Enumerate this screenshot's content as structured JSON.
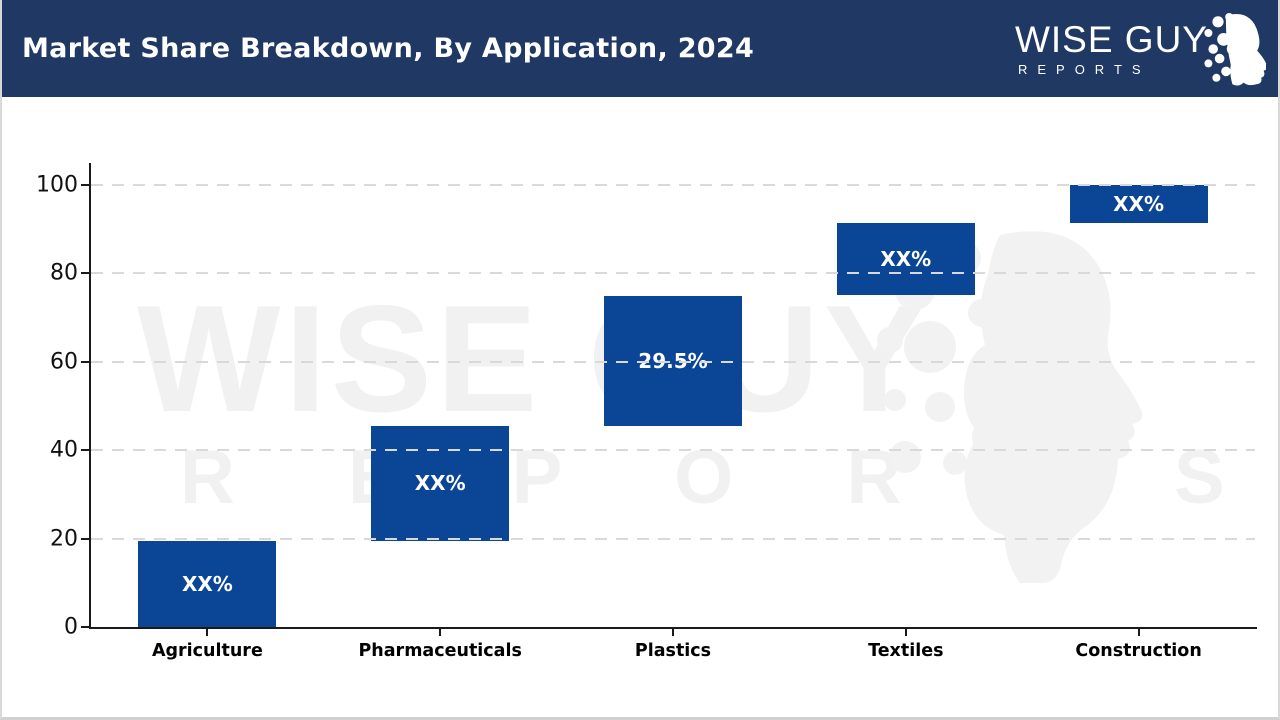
{
  "page": {
    "background": "#ffffff",
    "frame_border_color": "#d9d9d9"
  },
  "header": {
    "title": "Market Share Breakdown, By Application, 2024",
    "bg_color": "#203864",
    "text_color": "#ffffff",
    "logo": {
      "wordmark": "WISE GUY",
      "subtext": "REPORTS",
      "face_icon": "dotted-head-profile"
    }
  },
  "watermark": {
    "line1": "WISE GUY",
    "line2": "R E P O R T S",
    "color": "#f1f1f2",
    "face_icon": "dotted-head-profile"
  },
  "chart_data": {
    "type": "bar",
    "variant": "waterfall-floating-bars",
    "title": "Market Share Breakdown, By Application, 2024",
    "categories": [
      "Agriculture",
      "Pharmaceuticals",
      "Plastics",
      "Textiles",
      "Construction"
    ],
    "segments": [
      {
        "category": "Agriculture",
        "start": 0,
        "end": 19.5,
        "value": 19.5,
        "label": "XX%"
      },
      {
        "category": "Pharmaceuticals",
        "start": 19.5,
        "end": 45.5,
        "value": 26.0,
        "label": "XX%"
      },
      {
        "category": "Plastics",
        "start": 45.5,
        "end": 75.0,
        "value": 29.5,
        "label": "29.5%"
      },
      {
        "category": "Textiles",
        "start": 75.0,
        "end": 91.5,
        "value": 16.5,
        "label": "XX%"
      },
      {
        "category": "Construction",
        "start": 91.5,
        "end": 100,
        "value": 8.5,
        "label": "XX%"
      }
    ],
    "y_ticks": [
      0,
      20,
      40,
      60,
      80,
      100
    ],
    "ylim": [
      0,
      105
    ],
    "xlabel": "",
    "ylabel": "",
    "bar_color": "#0b4596",
    "bar_label_color": "#ffffff",
    "axis_color": "#1a1a1a",
    "grid": {
      "horizontal": true,
      "style": "dashed",
      "color": "#d9d9d9"
    },
    "legend": "none"
  }
}
